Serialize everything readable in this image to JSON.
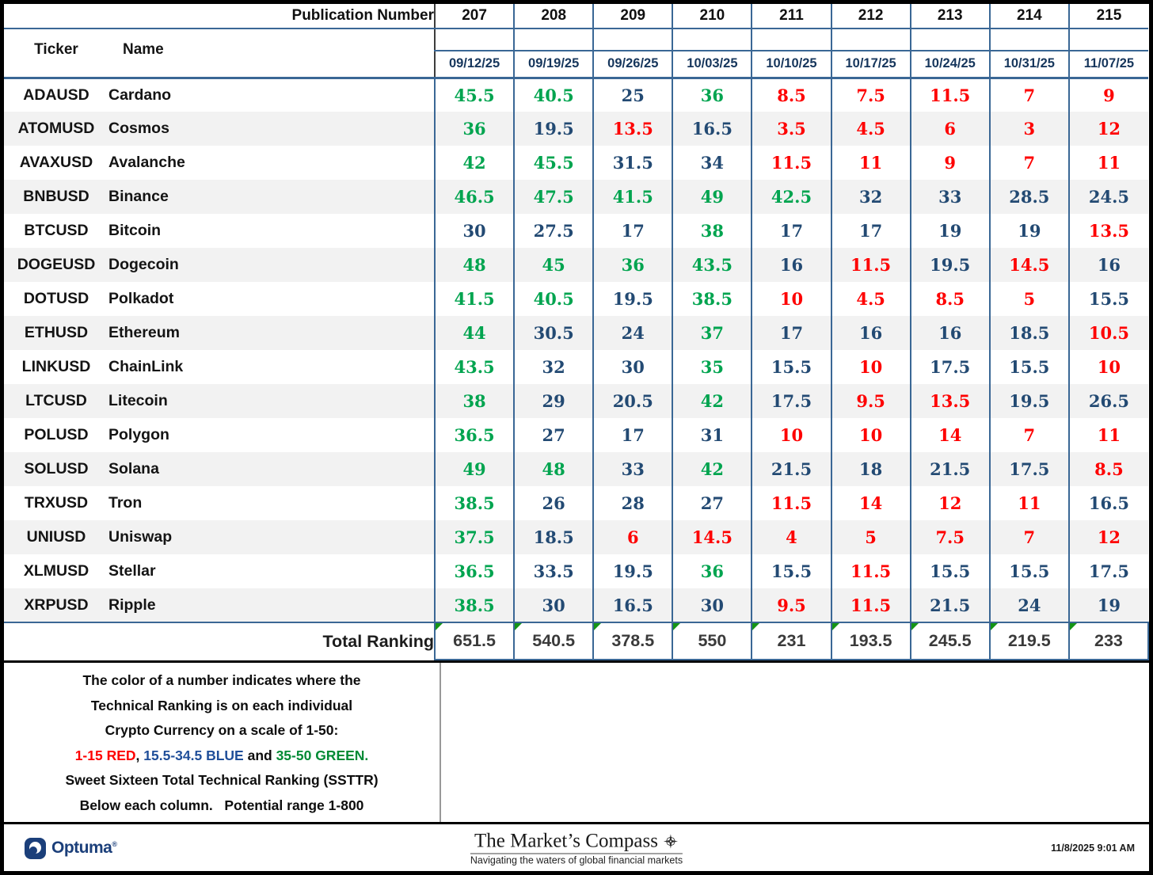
{
  "chart_data": {
    "type": "table",
    "corner_label": "Publication Number",
    "ticker_header": "Ticker",
    "name_header": "Name",
    "publication_numbers": [
      "207",
      "208",
      "209",
      "210",
      "211",
      "212",
      "213",
      "214",
      "215"
    ],
    "dates": [
      "09/12/25",
      "09/19/25",
      "09/26/25",
      "10/03/25",
      "10/10/25",
      "10/17/25",
      "10/24/25",
      "10/31/25",
      "11/07/25"
    ],
    "rows": [
      {
        "ticker": "ADAUSD",
        "name": "Cardano",
        "values": [
          45.5,
          40.5,
          25,
          36,
          8.5,
          7.5,
          11.5,
          7,
          9
        ]
      },
      {
        "ticker": "ATOMUSD",
        "name": "Cosmos",
        "values": [
          36,
          19.5,
          13.5,
          16.5,
          3.5,
          4.5,
          6,
          3,
          12
        ]
      },
      {
        "ticker": "AVAXUSD",
        "name": "Avalanche",
        "values": [
          42,
          45.5,
          31.5,
          34,
          11.5,
          11,
          9,
          7,
          11
        ]
      },
      {
        "ticker": "BNBUSD",
        "name": "Binance",
        "values": [
          46.5,
          47.5,
          41.5,
          49,
          42.5,
          32,
          33,
          28.5,
          24.5
        ]
      },
      {
        "ticker": "BTCUSD",
        "name": "Bitcoin",
        "values": [
          30,
          27.5,
          17,
          38,
          17,
          17,
          19,
          19,
          13.5
        ]
      },
      {
        "ticker": "DOGEUSD",
        "name": "Dogecoin",
        "values": [
          48,
          45,
          36,
          43.5,
          16,
          11.5,
          19.5,
          14.5,
          16
        ]
      },
      {
        "ticker": "DOTUSD",
        "name": "Polkadot",
        "values": [
          41.5,
          40.5,
          19.5,
          38.5,
          10,
          4.5,
          8.5,
          5,
          15.5
        ]
      },
      {
        "ticker": "ETHUSD",
        "name": "Ethereum",
        "values": [
          44,
          30.5,
          24,
          37,
          17,
          16,
          16,
          18.5,
          10.5
        ]
      },
      {
        "ticker": "LINKUSD",
        "name": "ChainLink",
        "values": [
          43.5,
          32,
          30,
          35,
          15.5,
          10,
          17.5,
          15.5,
          10
        ]
      },
      {
        "ticker": "LTCUSD",
        "name": "Litecoin",
        "values": [
          38,
          29,
          20.5,
          42,
          17.5,
          9.5,
          13.5,
          19.5,
          26.5
        ]
      },
      {
        "ticker": "POLUSD",
        "name": "Polygon",
        "values": [
          36.5,
          27,
          17,
          31,
          10,
          10,
          14,
          7,
          11
        ]
      },
      {
        "ticker": "SOLUSD",
        "name": "Solana",
        "values": [
          49,
          48,
          33,
          42,
          21.5,
          18,
          21.5,
          17.5,
          8.5
        ]
      },
      {
        "ticker": "TRXUSD",
        "name": "Tron",
        "values": [
          38.5,
          26,
          28,
          27,
          11.5,
          14,
          12,
          11,
          16.5
        ]
      },
      {
        "ticker": "UNIUSD",
        "name": "Uniswap",
        "values": [
          37.5,
          18.5,
          6,
          14.5,
          4,
          5,
          7.5,
          7,
          12
        ]
      },
      {
        "ticker": "XLMUSD",
        "name": "Stellar",
        "values": [
          36.5,
          33.5,
          19.5,
          36,
          15.5,
          11.5,
          15.5,
          15.5,
          17.5
        ]
      },
      {
        "ticker": "XRPUSD",
        "name": "Ripple",
        "values": [
          38.5,
          30,
          16.5,
          30,
          9.5,
          11.5,
          21.5,
          24,
          19
        ]
      }
    ],
    "total": {
      "label": "Total Ranking",
      "values": [
        651.5,
        540.5,
        378.5,
        550,
        231,
        193.5,
        245.5,
        219.5,
        233
      ]
    },
    "value_color_rule": {
      "red": "1-15",
      "blue": "15.5-34.5",
      "green": "35-50"
    },
    "value_range": [
      1,
      50
    ],
    "total_potential_range": [
      1,
      800
    ]
  },
  "legend": {
    "lines": [
      "The color of a number indicates where the",
      "Technical Ranking is on each individual",
      "Crypto Currency on a scale of 1-50:",
      "Sweet Sixteen Total Technical Ranking (SSTTR)",
      "Below each column.   Potential range 1-800"
    ],
    "colored_segments": [
      {
        "text": "1-15 RED",
        "color": "red"
      },
      {
        "text": ", ",
        "color": "black"
      },
      {
        "text": "15.5-34.5 BLUE",
        "color": "blue"
      },
      {
        "text": " and ",
        "color": "black"
      },
      {
        "text": "35-50 GREEN.",
        "color": "green"
      }
    ]
  },
  "footer": {
    "brand": "Optuma",
    "title": "The Market’s Compass",
    "tagline": "Navigating the waters of global financial markets",
    "timestamp": "11/8/2025 9:01 AM"
  },
  "colors": {
    "value_red": "#fe0000",
    "value_blue": "#234a73",
    "value_green": "#00a44f",
    "date_text": "#16365c",
    "grid_navy": "#3a6795",
    "row_stripe": "#f2f2f2",
    "total_triangle_green": "#149414",
    "brand_navy": "#1b3f7a",
    "legend_blue": "#1f4e99"
  }
}
